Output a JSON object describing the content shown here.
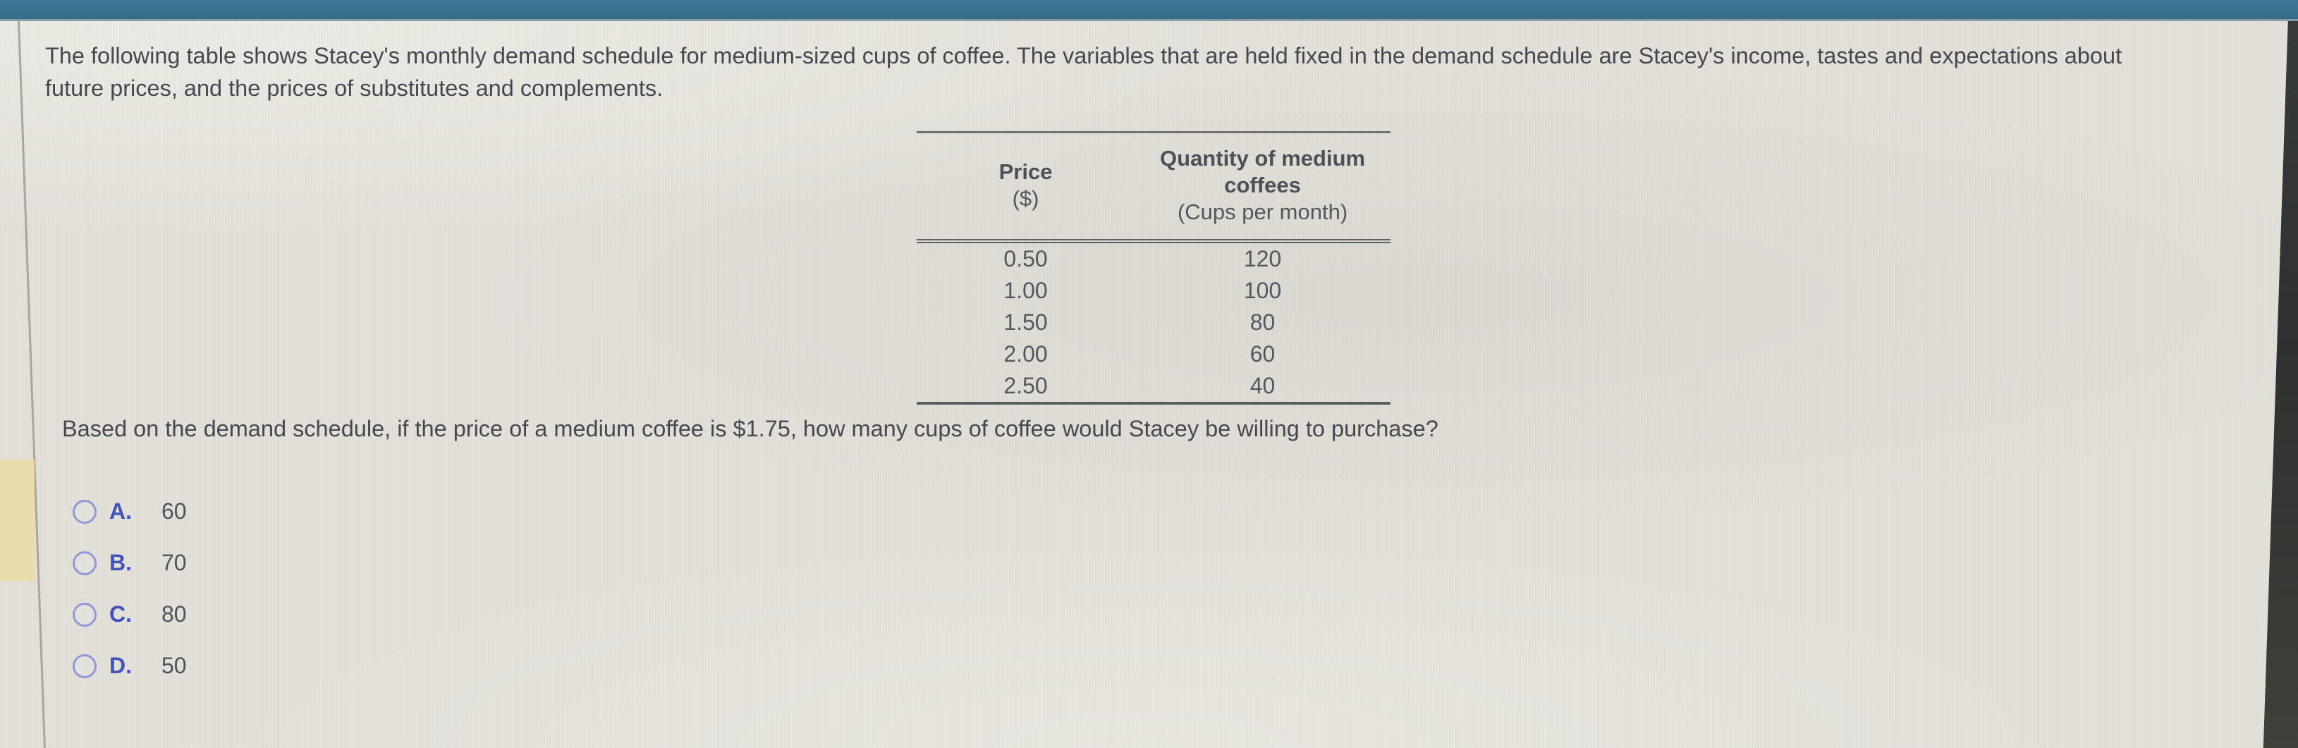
{
  "colors": {
    "top_bar": "#38718f",
    "panel_background": "#e2e0d9",
    "text": "#46454e",
    "option_letter_blue": "#3e52b8",
    "radio_outline": "#8f98da",
    "table_rule": "#5a5a61",
    "dark_right_edge": "#2e312f",
    "left_highlight": "#e9dcab"
  },
  "intro_text": "The following table shows Stacey's monthly demand schedule for medium-sized cups of coffee. The variables that are held fixed in the demand schedule are Stacey's income, tastes and expectations about future prices, and the prices of substitutes and complements.",
  "demand_table": {
    "price_header": {
      "line1": "Price",
      "line2": "($)"
    },
    "quantity_header": {
      "line1": "Quantity of medium",
      "line2": "coffees",
      "line3": "(Cups per month)"
    },
    "rows": [
      {
        "price": "0.50",
        "quantity": "120"
      },
      {
        "price": "1.00",
        "quantity": "100"
      },
      {
        "price": "1.50",
        "quantity": "80"
      },
      {
        "price": "2.00",
        "quantity": "60"
      },
      {
        "price": "2.50",
        "quantity": "40"
      }
    ]
  },
  "question_text": "Based on the demand schedule, if the price of a medium coffee is $1.75, how many cups of coffee would Stacey be willing to purchase?",
  "options": [
    {
      "letter": "A.",
      "value": "60"
    },
    {
      "letter": "B.",
      "value": "70"
    },
    {
      "letter": "C.",
      "value": "80"
    },
    {
      "letter": "D.",
      "value": "50"
    }
  ]
}
